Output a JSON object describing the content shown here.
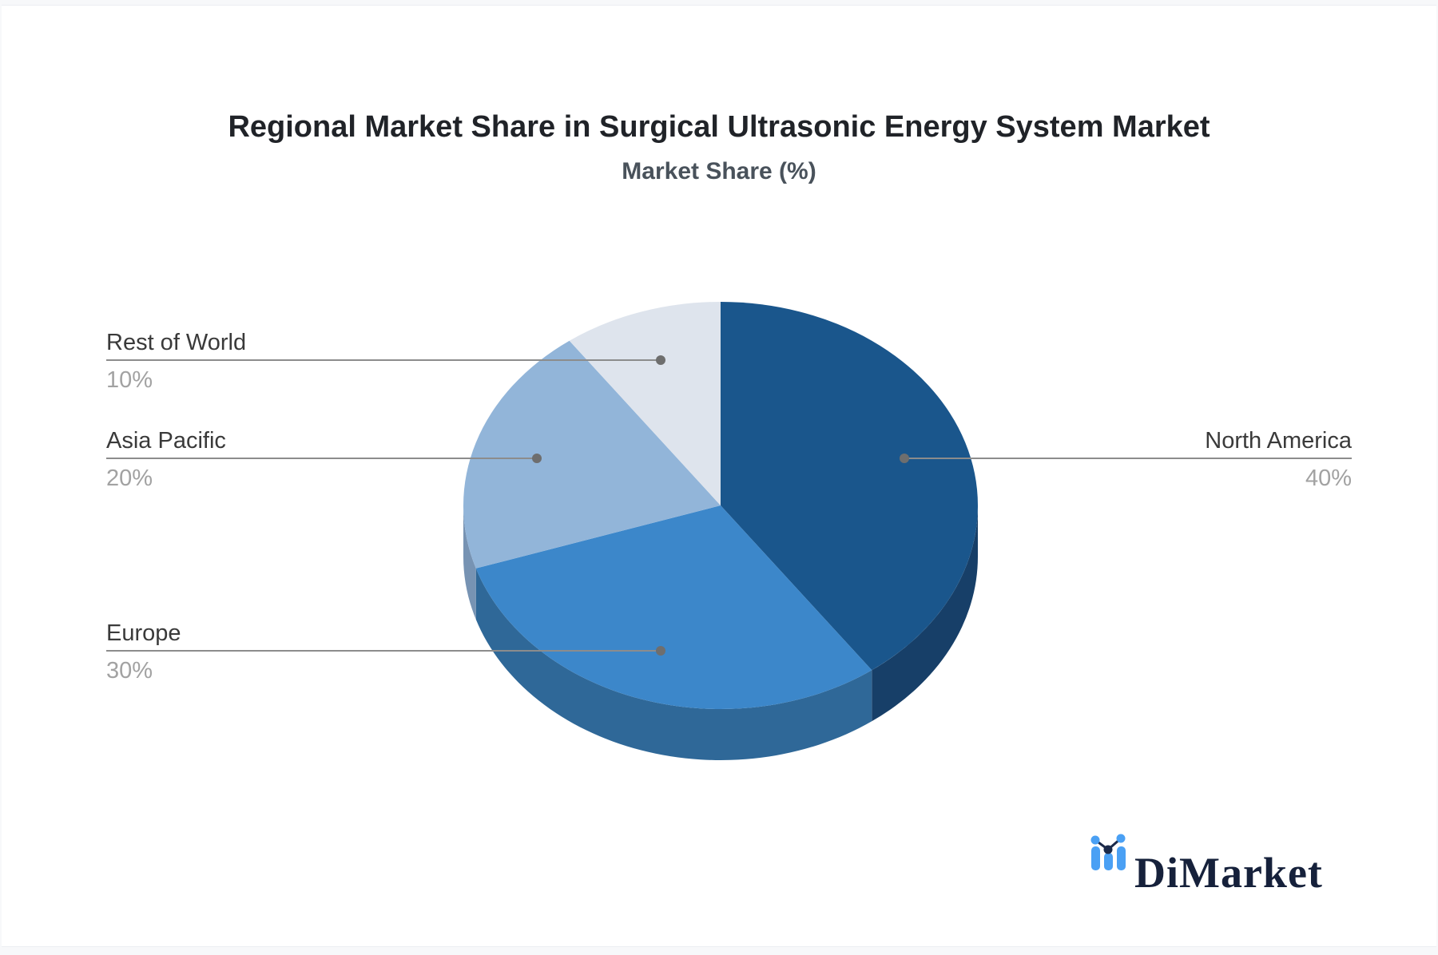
{
  "header": {
    "title": "Regional Market Share in Surgical Ultrasonic Energy System Market",
    "subtitle": "Market Share (%)"
  },
  "chart_data": {
    "type": "pie",
    "title": "Regional Market Share in Surgical Ultrasonic Energy System Market",
    "subtitle": "Market Share (%)",
    "unit": "%",
    "effect": "3d",
    "start_angle_deg": 0,
    "direction": "clockwise",
    "legend_position": "callout-labels",
    "slices": [
      {
        "label": "North America",
        "value": 40,
        "display": "40%",
        "color": "#1A568C",
        "side_color": "#173F68",
        "label_side": "right"
      },
      {
        "label": "Europe",
        "value": 30,
        "display": "30%",
        "color": "#3C87CA",
        "side_color": "#2F6898",
        "label_side": "left"
      },
      {
        "label": "Asia Pacific",
        "value": 20,
        "display": "20%",
        "color": "#92B5D9",
        "side_color": "#7793B3",
        "label_side": "left"
      },
      {
        "label": "Rest of World",
        "value": 10,
        "display": "10%",
        "color": "#DEE4ED",
        "side_color": "#C9D1DD",
        "label_side": "left"
      }
    ],
    "leader_line_color": "#8C8C8C",
    "leader_dot_color": "#6E6E6E",
    "label_color": "#3A3A3A",
    "value_color": "#A2A2A2"
  },
  "logo": {
    "text": "DiMarket",
    "icon": "bar-chart-logo-icon",
    "text_color": "#16213B",
    "accent_color": "#4AA0F4"
  }
}
